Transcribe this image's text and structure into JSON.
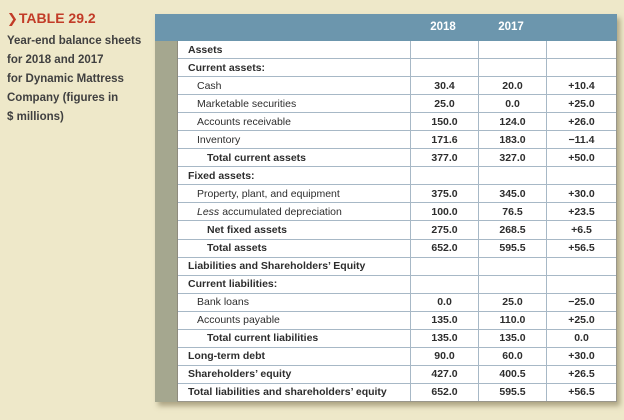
{
  "caption": {
    "marker": "❯",
    "title": "TABLE 29.2",
    "lines": [
      "Year-end balance sheets",
      "for 2018 and 2017",
      "for Dynamic Mattress",
      "Company (figures in",
      "$ millions)"
    ]
  },
  "colors": {
    "page_bg": "#eee8c9",
    "header_bg": "#6c96ad",
    "stripe": "#a5a78f",
    "accent_red": "#c23b27",
    "cell_border": "#a7b8c6"
  },
  "table": {
    "header": {
      "col_2018": "2018",
      "col_2017": "2017"
    },
    "rows": [
      {
        "label": "Assets",
        "bold": true,
        "indent": 0,
        "y2018": "",
        "y2017": "",
        "change": ""
      },
      {
        "label": "Current assets:",
        "bold": true,
        "indent": 0,
        "y2018": "",
        "y2017": "",
        "change": ""
      },
      {
        "label": "Cash",
        "bold": false,
        "indent": 1,
        "y2018": "30.4",
        "y2017": "20.0",
        "change": "+10.4"
      },
      {
        "label": "Marketable securities",
        "bold": false,
        "indent": 1,
        "y2018": "25.0",
        "y2017": "0.0",
        "change": "+25.0"
      },
      {
        "label": "Accounts receivable",
        "bold": false,
        "indent": 1,
        "y2018": "150.0",
        "y2017": "124.0",
        "change": "+26.0"
      },
      {
        "label": "Inventory",
        "bold": false,
        "indent": 1,
        "y2018": "171.6",
        "y2017": "183.0",
        "change": "−11.4"
      },
      {
        "label": "Total current assets",
        "bold": true,
        "indent": 2,
        "y2018": "377.0",
        "y2017": "327.0",
        "change": "+50.0"
      },
      {
        "label": "Fixed assets:",
        "bold": true,
        "indent": 0,
        "y2018": "",
        "y2017": "",
        "change": ""
      },
      {
        "label": "Property, plant, and equipment",
        "bold": false,
        "indent": 1,
        "y2018": "375.0",
        "y2017": "345.0",
        "change": "+30.0"
      },
      {
        "italic_prefix": "Less",
        "label": "accumulated depreciation",
        "bold": false,
        "indent": 1,
        "y2018": "100.0",
        "y2017": "76.5",
        "change": "+23.5"
      },
      {
        "label": "Net fixed assets",
        "bold": true,
        "indent": 2,
        "y2018": "275.0",
        "y2017": "268.5",
        "change": "+6.5"
      },
      {
        "label": "Total assets",
        "bold": true,
        "indent": 2,
        "y2018": "652.0",
        "y2017": "595.5",
        "change": "+56.5"
      },
      {
        "label": "Liabilities and Shareholders’ Equity",
        "bold": true,
        "indent": 0,
        "y2018": "",
        "y2017": "",
        "change": ""
      },
      {
        "label": "Current liabilities:",
        "bold": true,
        "indent": 0,
        "y2018": "",
        "y2017": "",
        "change": ""
      },
      {
        "label": "Bank loans",
        "bold": false,
        "indent": 1,
        "y2018": "0.0",
        "y2017": "25.0",
        "change": "−25.0"
      },
      {
        "label": "Accounts payable",
        "bold": false,
        "indent": 1,
        "y2018": "135.0",
        "y2017": "110.0",
        "change": "+25.0"
      },
      {
        "label": "Total current liabilities",
        "bold": true,
        "indent": 2,
        "y2018": "135.0",
        "y2017": "135.0",
        "change": "0.0"
      },
      {
        "label": "Long-term debt",
        "bold": true,
        "indent": 0,
        "y2018": "90.0",
        "y2017": "60.0",
        "change": "+30.0"
      },
      {
        "label": "Shareholders’ equity",
        "bold": true,
        "indent": 0,
        "y2018": "427.0",
        "y2017": "400.5",
        "change": "+26.5"
      },
      {
        "label": "Total liabilities and shareholders’ equity",
        "bold": true,
        "indent": 0,
        "y2018": "652.0",
        "y2017": "595.5",
        "change": "+56.5"
      }
    ]
  }
}
